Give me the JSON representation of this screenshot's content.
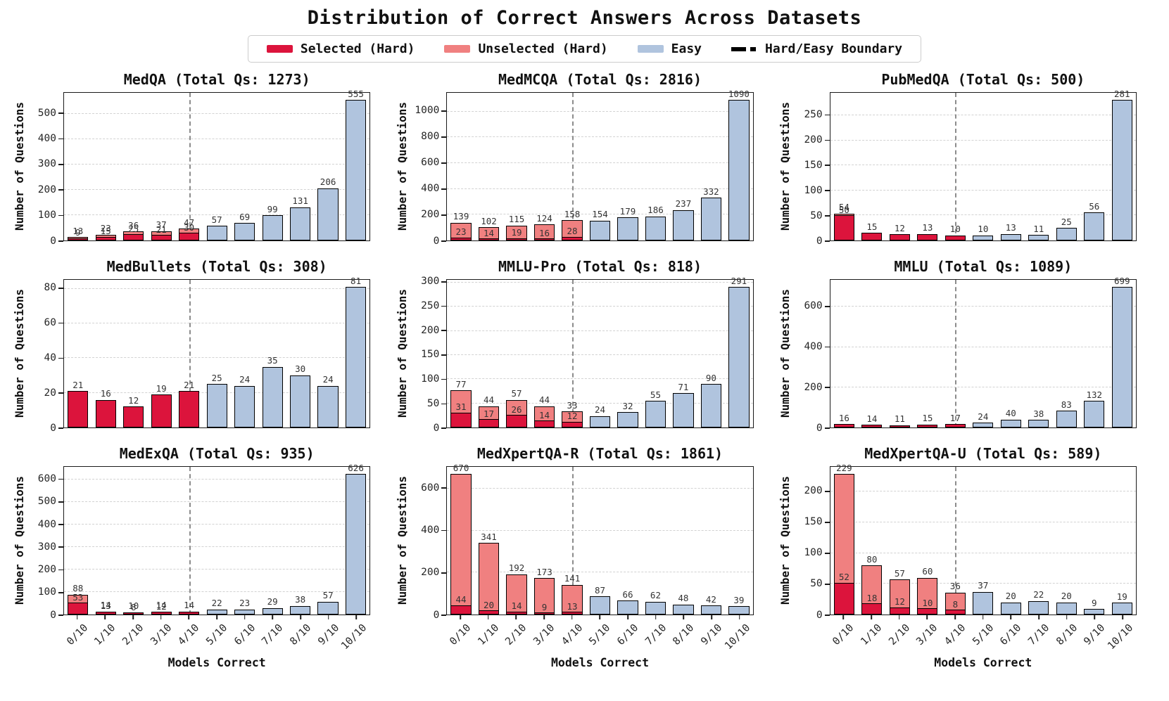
{
  "title": "Distribution of Correct Answers Across Datasets",
  "legend": {
    "items": [
      {
        "key": "selected",
        "label": "Selected (Hard)",
        "color": "#DC143C"
      },
      {
        "key": "unselected",
        "label": "Unselected (Hard)",
        "color": "#F08080"
      },
      {
        "key": "easy",
        "label": "Easy",
        "color": "#B0C4DE"
      },
      {
        "key": "boundary",
        "label": "Hard/Easy Boundary",
        "color": "#000000"
      }
    ]
  },
  "axes": {
    "xlabel": "Models Correct",
    "ylabel": "Number of Questions",
    "categories": [
      "0/10",
      "1/10",
      "2/10",
      "3/10",
      "4/10",
      "5/10",
      "6/10",
      "7/10",
      "8/10",
      "9/10",
      "10/10"
    ],
    "boundary_between": [
      "4/10",
      "5/10"
    ],
    "grid": "dashed-horizontal",
    "legend_position": "top-center"
  },
  "chart_data": [
    {
      "id": "medqa",
      "type": "bar",
      "title": "MedQA (Total Qs: 1273)",
      "total_qs": 1273,
      "ylim": [
        0,
        582.8
      ],
      "yticks": [
        0,
        100,
        200,
        300,
        400,
        500
      ],
      "totals": [
        13,
        23,
        36,
        37,
        47,
        57,
        69,
        99,
        131,
        206,
        555
      ],
      "series": [
        {
          "name": "Selected (Hard)",
          "values": [
            9,
            15,
            25,
            21,
            30,
            0,
            0,
            0,
            0,
            0,
            0
          ]
        },
        {
          "name": "Unselected (Hard)",
          "values": [
            4,
            8,
            11,
            16,
            17,
            0,
            0,
            0,
            0,
            0,
            0
          ]
        },
        {
          "name": "Easy",
          "values": [
            0,
            0,
            0,
            0,
            0,
            57,
            69,
            99,
            131,
            206,
            555
          ]
        }
      ]
    },
    {
      "id": "medmcqa",
      "type": "bar",
      "title": "MedMCQA (Total Qs: 2816)",
      "total_qs": 2816,
      "ylim": [
        0,
        1144.5
      ],
      "yticks": [
        0,
        200,
        400,
        600,
        800,
        1000
      ],
      "totals": [
        139,
        102,
        115,
        124,
        158,
        154,
        179,
        186,
        237,
        332,
        1090
      ],
      "series": [
        {
          "name": "Selected (Hard)",
          "values": [
            23,
            14,
            19,
            16,
            28,
            0,
            0,
            0,
            0,
            0,
            0
          ]
        },
        {
          "name": "Unselected (Hard)",
          "values": [
            116,
            88,
            96,
            108,
            130,
            0,
            0,
            0,
            0,
            0,
            0
          ]
        },
        {
          "name": "Easy",
          "values": [
            0,
            0,
            0,
            0,
            0,
            154,
            179,
            186,
            237,
            332,
            1090
          ]
        }
      ]
    },
    {
      "id": "pubmedqa",
      "type": "bar",
      "title": "PubMedQA (Total Qs: 500)",
      "total_qs": 500,
      "ylim": [
        0,
        295.1
      ],
      "yticks": [
        0,
        50,
        100,
        150,
        200,
        250
      ],
      "totals": [
        54,
        15,
        12,
        13,
        10,
        10,
        13,
        11,
        25,
        56,
        281
      ],
      "series": [
        {
          "name": "Selected (Hard)",
          "values": [
            50,
            15,
            12,
            13,
            10,
            0,
            0,
            0,
            0,
            0,
            0
          ]
        },
        {
          "name": "Unselected (Hard)",
          "values": [
            4,
            0,
            0,
            0,
            0,
            0,
            0,
            0,
            0,
            0,
            0
          ]
        },
        {
          "name": "Easy",
          "values": [
            0,
            0,
            0,
            0,
            0,
            10,
            13,
            11,
            25,
            56,
            281
          ]
        }
      ]
    },
    {
      "id": "medbullets",
      "type": "bar",
      "title": "MedBullets (Total Qs: 308)",
      "total_qs": 308,
      "ylim": [
        0,
        85.1
      ],
      "yticks": [
        0,
        20,
        40,
        60,
        80
      ],
      "totals": [
        21,
        16,
        12,
        19,
        21,
        25,
        24,
        35,
        30,
        24,
        81
      ],
      "series": [
        {
          "name": "Selected (Hard)",
          "values": [
            21,
            16,
            12,
            19,
            21,
            0,
            0,
            0,
            0,
            0,
            0
          ]
        },
        {
          "name": "Unselected (Hard)",
          "values": [
            0,
            0,
            0,
            0,
            0,
            0,
            0,
            0,
            0,
            0,
            0
          ]
        },
        {
          "name": "Easy",
          "values": [
            0,
            0,
            0,
            0,
            0,
            25,
            24,
            35,
            30,
            24,
            81
          ]
        }
      ]
    },
    {
      "id": "mmlu-pro",
      "type": "bar",
      "title": "MMLU-Pro (Total Qs: 818)",
      "total_qs": 818,
      "ylim": [
        0,
        305.6
      ],
      "yticks": [
        0,
        50,
        100,
        150,
        200,
        250,
        300
      ],
      "totals": [
        77,
        44,
        57,
        44,
        33,
        24,
        32,
        55,
        71,
        90,
        291
      ],
      "series": [
        {
          "name": "Selected (Hard)",
          "values": [
            31,
            17,
            26,
            14,
            12,
            0,
            0,
            0,
            0,
            0,
            0
          ]
        },
        {
          "name": "Unselected (Hard)",
          "values": [
            46,
            27,
            31,
            30,
            21,
            0,
            0,
            0,
            0,
            0,
            0
          ]
        },
        {
          "name": "Easy",
          "values": [
            0,
            0,
            0,
            0,
            0,
            24,
            32,
            55,
            71,
            90,
            291
          ]
        }
      ]
    },
    {
      "id": "mmlu",
      "type": "bar",
      "title": "MMLU (Total Qs: 1089)",
      "total_qs": 1089,
      "ylim": [
        0,
        734.0
      ],
      "yticks": [
        0,
        200,
        400,
        600
      ],
      "totals": [
        16,
        14,
        11,
        15,
        17,
        24,
        40,
        38,
        83,
        132,
        699
      ],
      "series": [
        {
          "name": "Selected (Hard)",
          "values": [
            16,
            14,
            11,
            15,
            17,
            0,
            0,
            0,
            0,
            0,
            0
          ]
        },
        {
          "name": "Unselected (Hard)",
          "values": [
            0,
            0,
            0,
            0,
            0,
            0,
            0,
            0,
            0,
            0,
            0
          ]
        },
        {
          "name": "Easy",
          "values": [
            0,
            0,
            0,
            0,
            0,
            24,
            40,
            38,
            83,
            132,
            699
          ]
        }
      ]
    },
    {
      "id": "medexqa",
      "type": "bar",
      "title": "MedExQA (Total Qs: 935)",
      "total_qs": 935,
      "ylim": [
        0,
        657.3
      ],
      "yticks": [
        0,
        100,
        200,
        300,
        400,
        500,
        600
      ],
      "totals": [
        88,
        14,
        10,
        14,
        14,
        22,
        23,
        29,
        38,
        57,
        626
      ],
      "series": [
        {
          "name": "Selected (Hard)",
          "values": [
            53,
            13,
            8,
            12,
            14,
            0,
            0,
            0,
            0,
            0,
            0
          ]
        },
        {
          "name": "Unselected (Hard)",
          "values": [
            35,
            1,
            2,
            2,
            0,
            0,
            0,
            0,
            0,
            0,
            0
          ]
        },
        {
          "name": "Easy",
          "values": [
            0,
            0,
            0,
            0,
            0,
            22,
            23,
            29,
            38,
            57,
            626
          ]
        }
      ]
    },
    {
      "id": "medxpertqa-r",
      "type": "bar",
      "title": "MedXpertQA-R (Total Qs: 1861)",
      "total_qs": 1861,
      "ylim": [
        0,
        703.5
      ],
      "yticks": [
        0,
        200,
        400,
        600
      ],
      "totals": [
        670,
        341,
        192,
        173,
        141,
        87,
        66,
        62,
        48,
        42,
        39
      ],
      "series": [
        {
          "name": "Selected (Hard)",
          "values": [
            44,
            20,
            14,
            9,
            13,
            0,
            0,
            0,
            0,
            0,
            0
          ]
        },
        {
          "name": "Unselected (Hard)",
          "values": [
            626,
            321,
            178,
            164,
            128,
            0,
            0,
            0,
            0,
            0,
            0
          ]
        },
        {
          "name": "Easy",
          "values": [
            0,
            0,
            0,
            0,
            0,
            87,
            66,
            62,
            48,
            42,
            39
          ]
        }
      ]
    },
    {
      "id": "medxpertqa-u",
      "type": "bar",
      "title": "MedXpertQA-U (Total Qs: 589)",
      "total_qs": 589,
      "ylim": [
        0,
        240.5
      ],
      "yticks": [
        0,
        50,
        100,
        150,
        200
      ],
      "totals": [
        229,
        80,
        57,
        60,
        36,
        37,
        20,
        22,
        20,
        9,
        19
      ],
      "series": [
        {
          "name": "Selected (Hard)",
          "values": [
            52,
            18,
            12,
            10,
            8,
            0,
            0,
            0,
            0,
            0,
            0
          ]
        },
        {
          "name": "Unselected (Hard)",
          "values": [
            177,
            62,
            45,
            50,
            28,
            0,
            0,
            0,
            0,
            0,
            0
          ]
        },
        {
          "name": "Easy",
          "values": [
            0,
            0,
            0,
            0,
            0,
            37,
            20,
            22,
            20,
            9,
            19
          ]
        }
      ]
    }
  ]
}
